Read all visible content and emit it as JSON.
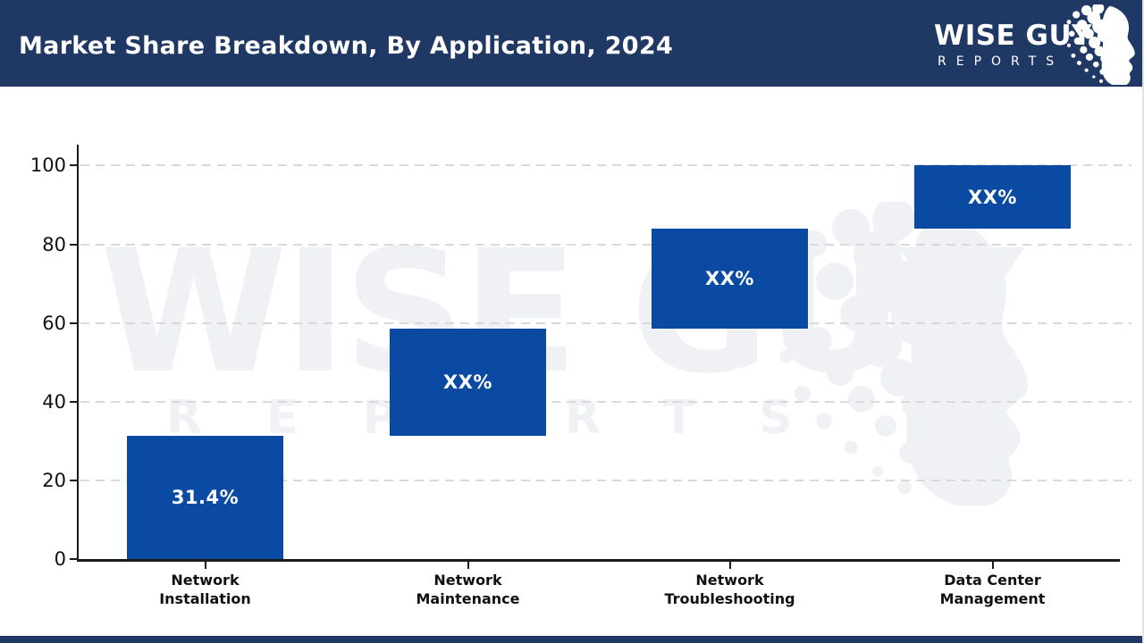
{
  "header": {
    "title": "Market Share Breakdown, By Application, 2024",
    "logo_brand": "WISE GUY",
    "logo_sub": "REPORTS"
  },
  "watermark": {
    "brand": "WISE GUY",
    "sub": "REPORTS"
  },
  "colors": {
    "header_bg": "#203864",
    "bar_fill": "#0b4aa2",
    "bar_label": "#ffffff",
    "grid": "#d9d9d9",
    "axis": "#1a1a1a",
    "watermark": "#f0f1f4"
  },
  "chart_data": {
    "type": "bar",
    "subtype": "waterfall",
    "title": "Market Share Breakdown, By Application, 2024",
    "unit": "%",
    "categories": [
      "Network Installation",
      "Network Maintenance",
      "Network Troubleshooting",
      "Data Center Management"
    ],
    "bars": [
      {
        "category": "Network Installation",
        "category_lines": [
          "Network",
          "Installation"
        ],
        "start": 0,
        "end": 31.4,
        "value": 31.4,
        "label": "31.4%"
      },
      {
        "category": "Network Maintenance",
        "category_lines": [
          "Network",
          "Maintenance"
        ],
        "start": 31.4,
        "end": 58.6,
        "value": 27.2,
        "label": "XX%"
      },
      {
        "category": "Network Troubleshooting",
        "category_lines": [
          "Network",
          "Troubleshooting"
        ],
        "start": 58.6,
        "end": 84.0,
        "value": 25.4,
        "label": "XX%"
      },
      {
        "category": "Data Center Management",
        "category_lines": [
          "Data Center",
          "Management"
        ],
        "start": 84.0,
        "end": 100.0,
        "value": 16.0,
        "label": "XX%"
      }
    ],
    "ylim": [
      0,
      100
    ],
    "yticks": [
      0,
      20,
      40,
      60,
      80,
      100
    ],
    "grid": "horizontal-dashed",
    "legend": "none",
    "xlabel": "",
    "ylabel": ""
  }
}
